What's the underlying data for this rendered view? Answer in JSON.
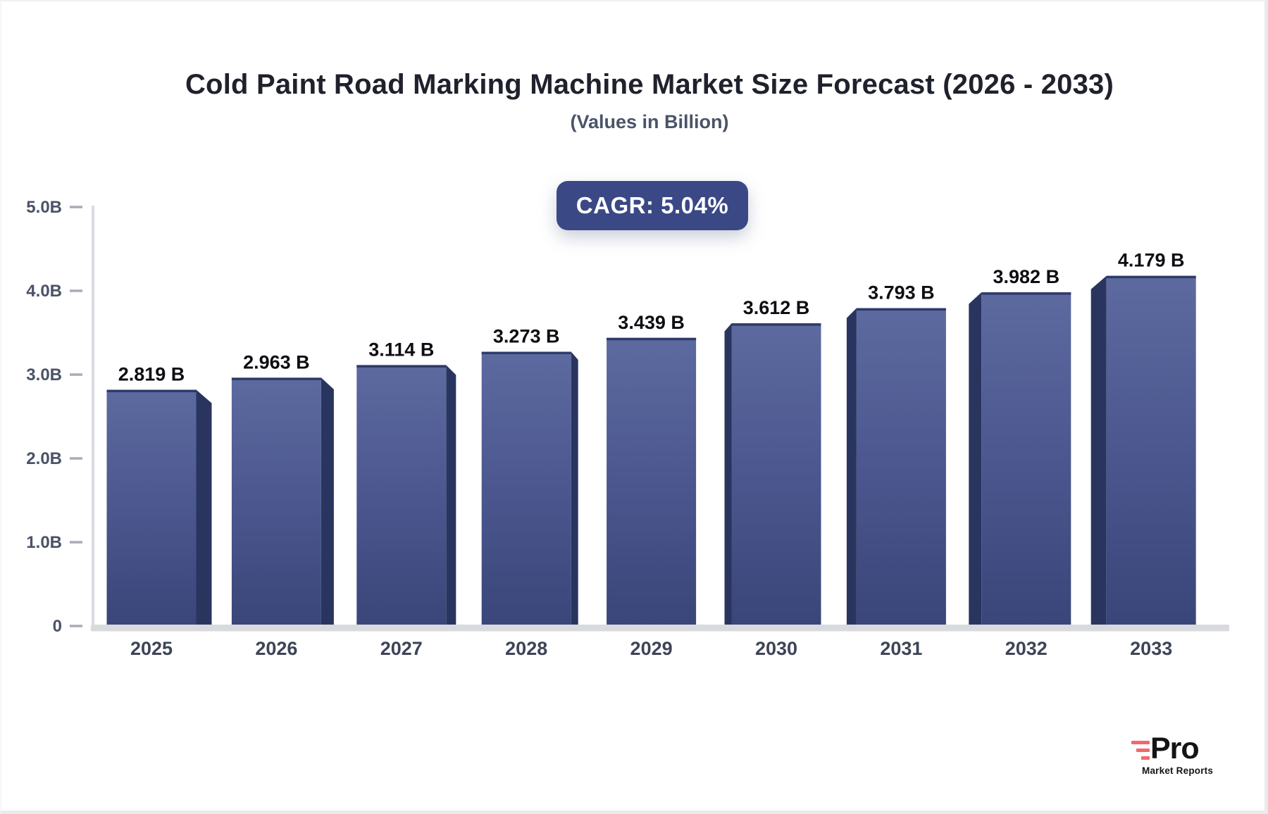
{
  "header": {
    "title": "Cold Paint Road Marking Machine Market Size Forecast (2026 - 2033)",
    "subtitle": "(Values in Billion)",
    "cagr_badge": "CAGR: 5.04%"
  },
  "chart_data": {
    "type": "bar",
    "style": "3d-perspective-columns",
    "title": "Cold Paint Road Marking Machine Market Size Forecast (2026 - 2033)",
    "subtitle": "(Values in Billion)",
    "cagr_percent": 5.04,
    "categories": [
      "2025",
      "2026",
      "2027",
      "2028",
      "2029",
      "2030",
      "2031",
      "2032",
      "2033"
    ],
    "values": [
      2.819,
      2.963,
      3.114,
      3.273,
      3.439,
      3.612,
      3.793,
      3.982,
      4.179
    ],
    "value_labels": [
      "2.819 B",
      "2.963 B",
      "3.114 B",
      "3.273 B",
      "3.439 B",
      "3.612 B",
      "3.793 B",
      "3.982 B",
      "4.179 B"
    ],
    "unit": "Billion",
    "xlabel": "",
    "ylabel": "",
    "ylim": [
      0,
      5
    ],
    "yticks": [
      "0",
      "1.0B",
      "2.0B",
      "3.0B",
      "4.0B",
      "5.0B"
    ],
    "grid": false,
    "legend": false,
    "colors": {
      "bar_front_top": "#5d6aa0",
      "bar_front_mid": "#49558c",
      "bar_front_bottom": "#3a4679",
      "bar_side": "#2a355f",
      "bar_top_edge": "#2e3a69",
      "axis_line": "#d9dbe1",
      "baseline": "#d8dade",
      "tick_dash": "#a8acb8",
      "tick_text": "#4a5266",
      "xlabel_text": "#3d4456",
      "value_text": "#0d0d13",
      "badge_bg": "#3b4886"
    }
  },
  "footer_logo": {
    "brand": "Pro",
    "tagline": "Market Reports",
    "accent_color": "#f3696b",
    "stripes_icon": "three-red-stripes"
  }
}
